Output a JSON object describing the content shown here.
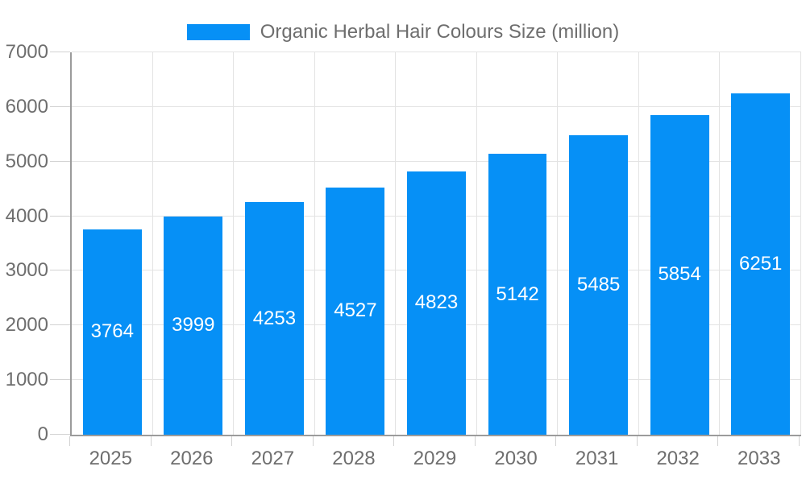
{
  "chart_data": {
    "type": "bar",
    "title": "Organic Herbal Hair Colours Size (million)",
    "legend": {
      "position": "top",
      "entries": [
        "Organic Herbal Hair Colours Size (million)"
      ]
    },
    "categories": [
      "2025",
      "2026",
      "2027",
      "2028",
      "2029",
      "2030",
      "2031",
      "2032",
      "2033"
    ],
    "series": [
      {
        "name": "Organic Herbal Hair Colours Size (million)",
        "values": [
          3764,
          3999,
          4253,
          4527,
          4823,
          5142,
          5485,
          5854,
          6251
        ]
      }
    ],
    "xlabel": "",
    "ylabel": "",
    "ylim": [
      0,
      7000
    ],
    "y_ticks": [
      0,
      1000,
      2000,
      3000,
      4000,
      5000,
      6000,
      7000
    ],
    "grid": true,
    "bar_value_labels": "inside-center",
    "colors": {
      "bar": "#0690f6",
      "bar_label_text": "#ffffff",
      "axis_text": "#6e6e6e",
      "legend_text": "#6e6e6e",
      "grid_line": "#e3e3e3",
      "axis_line": "#9b9b9b",
      "tick": "#d2d2d2",
      "background": "#ffffff"
    }
  }
}
